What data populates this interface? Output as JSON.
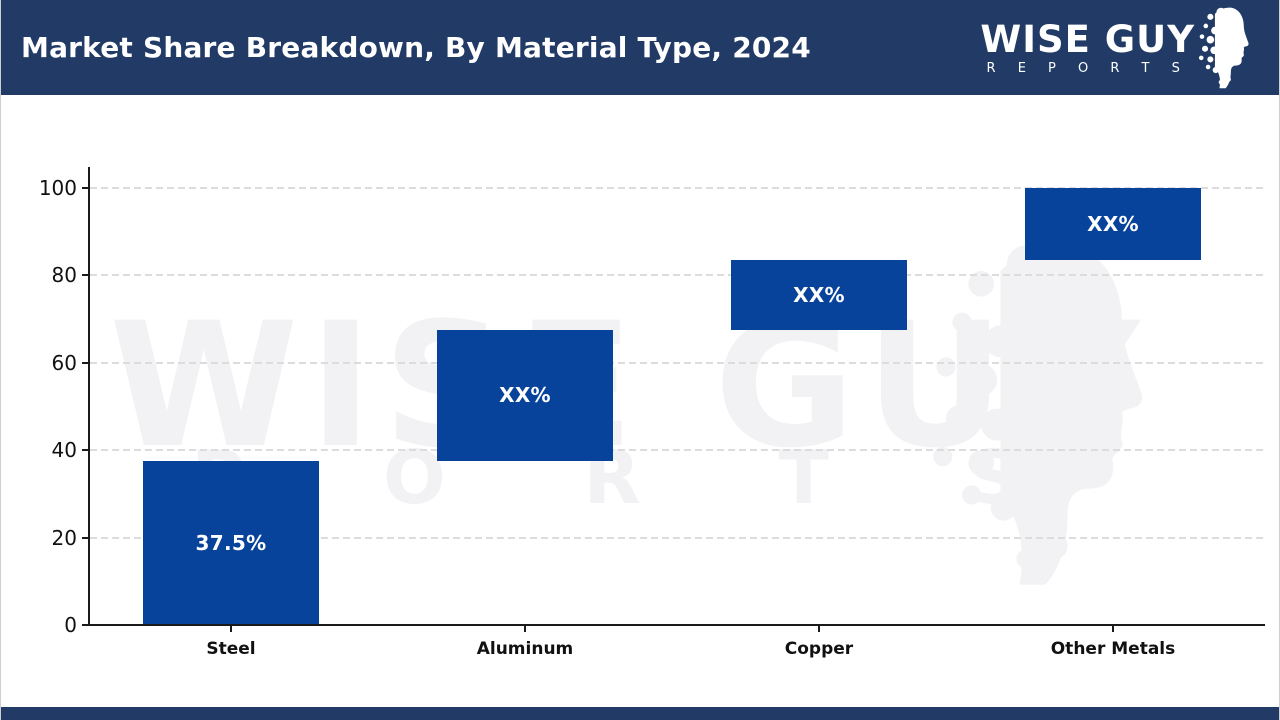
{
  "header": {
    "title": "Market Share Breakdown, By Material Type, 2024",
    "logo": {
      "line1": "WISE GUY",
      "line2": "R E P O R T S"
    }
  },
  "watermark": {
    "line1": "WISE GUY",
    "line2": "P O R T S"
  },
  "chart_data": {
    "type": "bar",
    "subtype": "waterfall",
    "title": "Market Share Breakdown, By Material Type, 2024",
    "categories": [
      "Steel",
      "Aluminum",
      "Copper",
      "Other Metals"
    ],
    "segments": [
      {
        "category": "Steel",
        "start": 0,
        "end": 37.5,
        "label": "37.5%"
      },
      {
        "category": "Aluminum",
        "start": 37.5,
        "end": 67.5,
        "label": "XX%"
      },
      {
        "category": "Copper",
        "start": 67.5,
        "end": 83.5,
        "label": "XX%"
      },
      {
        "category": "Other Metals",
        "start": 83.5,
        "end": 100,
        "label": "XX%"
      }
    ],
    "yticks": [
      0,
      20,
      40,
      60,
      80,
      100
    ],
    "ylim": [
      0,
      105
    ],
    "xlabel": "",
    "ylabel": "",
    "grid": true,
    "legend": false
  },
  "colors": {
    "header_bg": "#213a66",
    "footer_bg": "#213a66",
    "bar": "#08439b",
    "grid": "#dcdcdc",
    "axis": "#1a1a1a",
    "watermark": "#f2f2f4",
    "bar_label": "#ffffff"
  }
}
